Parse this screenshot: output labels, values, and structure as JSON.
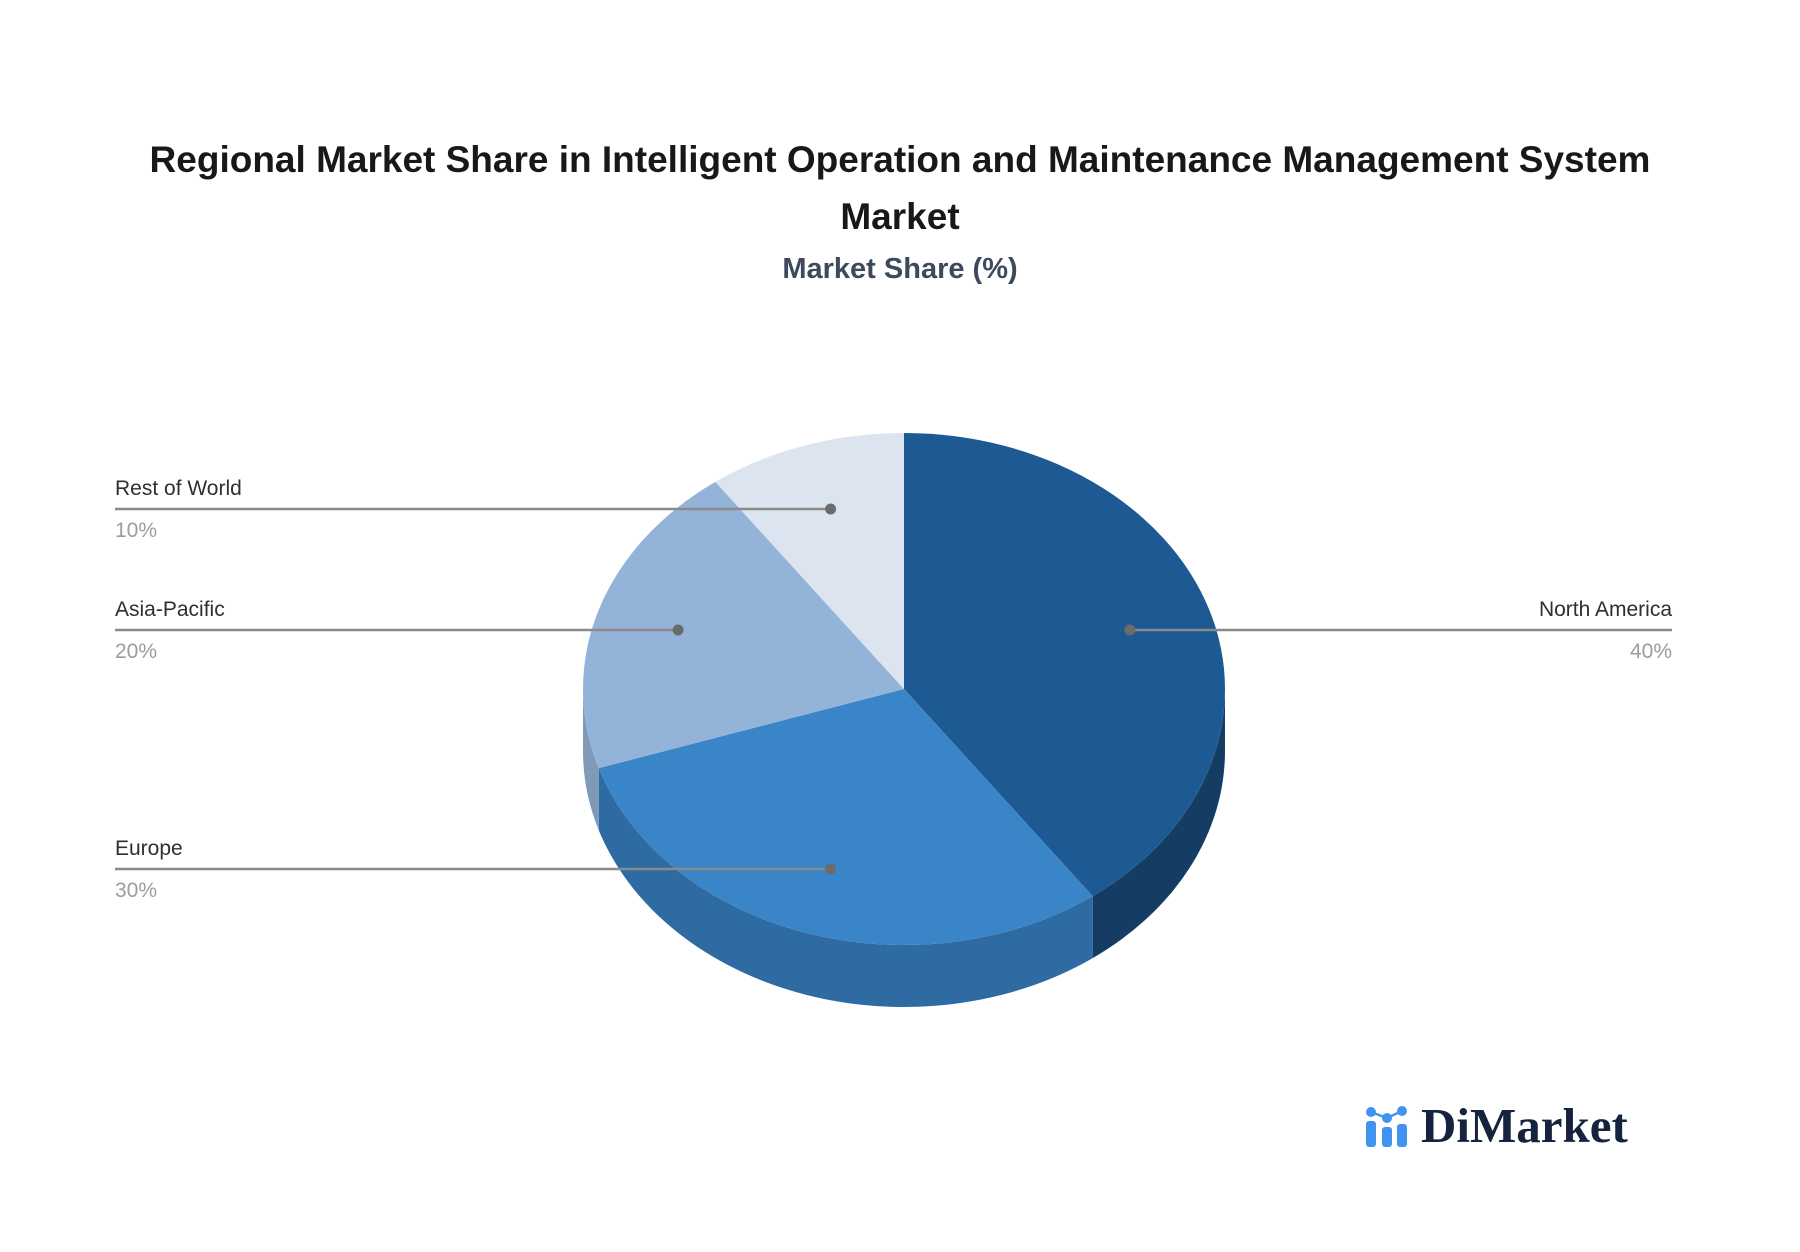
{
  "header": {
    "title_lines": [
      "Regional Market Share in Intelligent Operation and Maintenance Management System",
      "Market"
    ],
    "subtitle": "Market Share (%)"
  },
  "chart_data": {
    "type": "pie",
    "style": "3d-pie",
    "title": "Regional Market Share in Intelligent Operation and Maintenance Management System Market",
    "subtitle": "Market Share (%)",
    "unit": "%",
    "start_angle_deg": 0,
    "direction": "clockwise",
    "legend": "none",
    "labels_layout": "leader-lines",
    "slices": [
      {
        "label": "North America",
        "value": 40,
        "percent_label": "40%",
        "color": "#1d5a94",
        "side_color": "#153d64"
      },
      {
        "label": "Europe",
        "value": 30,
        "percent_label": "30%",
        "color": "#3a85c8",
        "side_color": "#2e6ba3"
      },
      {
        "label": "Asia-Pacific",
        "value": 20,
        "percent_label": "20%",
        "color": "#94b3d8",
        "side_color": "#7e9ab8"
      },
      {
        "label": "Rest of World",
        "value": 10,
        "percent_label": "10%",
        "color": "#dce4ef"
      }
    ],
    "leader_line_color": "#8a8a8a",
    "leader_dot_color": "#6b6b6b",
    "label_color": "#2f2f2f",
    "percent_color": "#9c9c9c"
  },
  "logo": {
    "text": "DiMarket",
    "icon": "bar-chart-icon",
    "icon_color": "#4094f0",
    "text_color": "#16233f"
  }
}
